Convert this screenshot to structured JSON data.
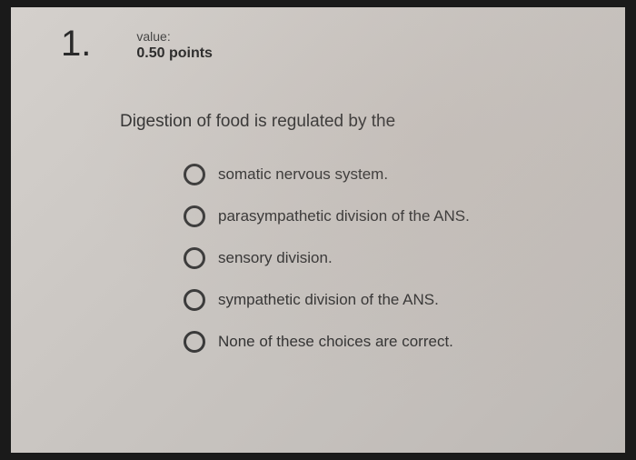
{
  "question": {
    "number": "1.",
    "value_label": "value:",
    "value_points": "0.50 points",
    "prompt": "Digestion of food is regulated by the",
    "options": [
      "somatic nervous system.",
      "parasympathetic division of the ANS.",
      "sensory division.",
      "sympathetic division of the ANS.",
      "None of these choices are correct."
    ]
  },
  "styling": {
    "type": "multiple-choice-question",
    "background_gradient": [
      "#d4d0cc",
      "#c8c4c0",
      "#beb9b5"
    ],
    "text_color": "#333333",
    "number_color": "#2a2a2a",
    "radio_border_color": "#3a3a3a",
    "radio_border_width": 3,
    "number_fontsize": 40,
    "question_fontsize": 19,
    "option_fontsize": 17,
    "value_label_fontsize": 14,
    "value_points_fontsize": 16,
    "value_points_weight": 700
  }
}
